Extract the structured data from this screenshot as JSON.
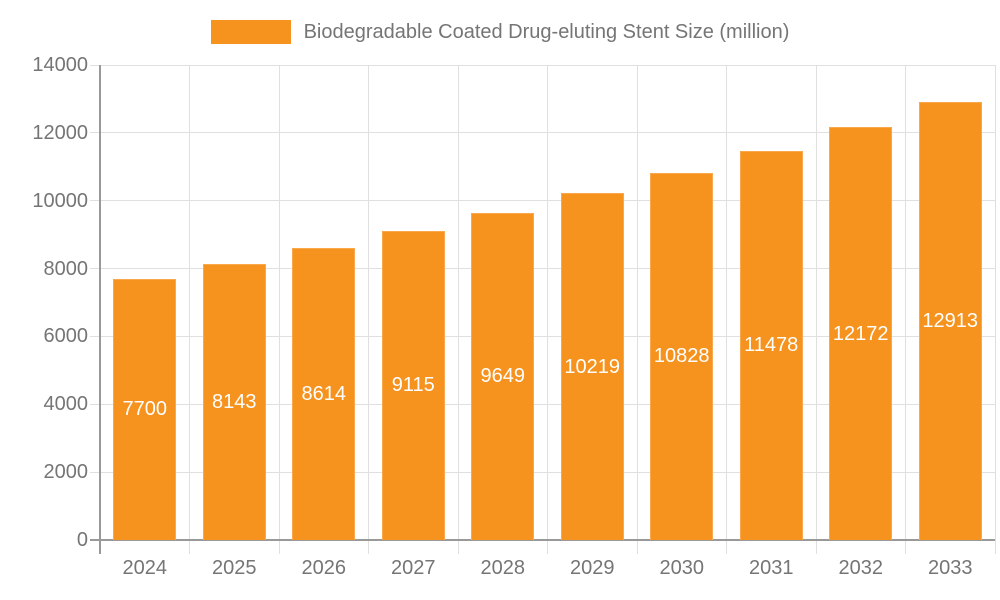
{
  "chart_data": {
    "type": "bar",
    "title": "Biodegradable Coated Drug-eluting Stent Size (million)",
    "categories": [
      "2024",
      "2025",
      "2026",
      "2027",
      "2028",
      "2029",
      "2030",
      "2031",
      "2032",
      "2033"
    ],
    "values": [
      7700,
      8143,
      8614,
      9115,
      9649,
      10219,
      10828,
      11478,
      12172,
      12913
    ],
    "xlabel": "",
    "ylabel": "",
    "ylim": [
      0,
      14000
    ],
    "ytick_step": 2000,
    "grid": true,
    "legend_position": "top-center",
    "bar_label_position": "inside-center",
    "colors": {
      "bar": "#F6921E",
      "bar_border": "#F9A94C",
      "grid": "#E0E0E0",
      "axis": "#999999",
      "tick_text": "#757575",
      "bar_label": "#FFFFFF"
    }
  }
}
